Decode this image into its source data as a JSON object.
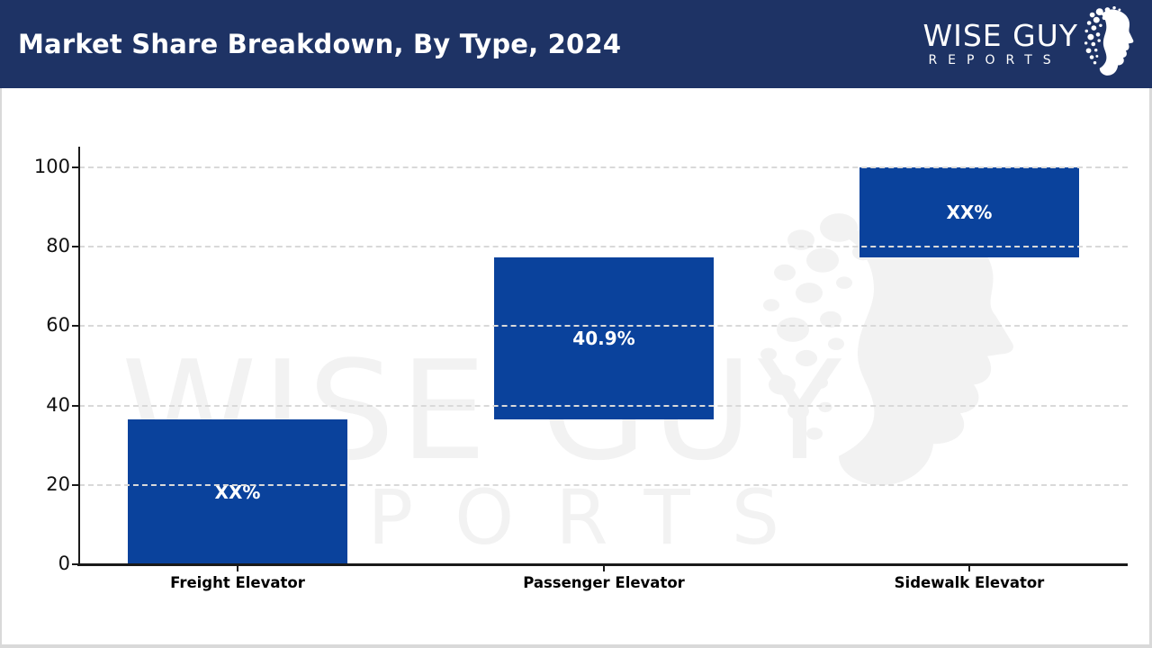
{
  "header": {
    "title": "Market Share Breakdown, By Type, 2024",
    "bg_color": "#1e3365",
    "logo": {
      "line1": "WISE GUY",
      "line2": "REPORTS"
    }
  },
  "watermark": {
    "line1": "WISE GUY",
    "line2": "REPORTS"
  },
  "chart_data": {
    "type": "bar",
    "variant": "stacked-waterfall-floating-bars",
    "title": "Market Share Breakdown, By Type, 2024",
    "categories": [
      "Freight Elevator",
      "Passenger Elevator",
      "Sidewalk Elevator"
    ],
    "bars": [
      {
        "category": "Freight Elevator",
        "start": 0,
        "end": 36.4,
        "label": "XX%"
      },
      {
        "category": "Passenger Elevator",
        "start": 36.4,
        "end": 77.3,
        "label": "40.9%"
      },
      {
        "category": "Sidewalk Elevator",
        "start": 77.3,
        "end": 100,
        "label": "XX%"
      }
    ],
    "xlabel": "",
    "ylabel": "",
    "ylim": [
      0,
      105.2
    ],
    "yticks": [
      0,
      20,
      40,
      60,
      80,
      100
    ],
    "grid": "horizontal-dashed-drawn-above-bars",
    "legend": "none",
    "bar_color": "#0a429c",
    "axis_color": "#1a1a1a",
    "grid_color": "#d9d9d9"
  }
}
